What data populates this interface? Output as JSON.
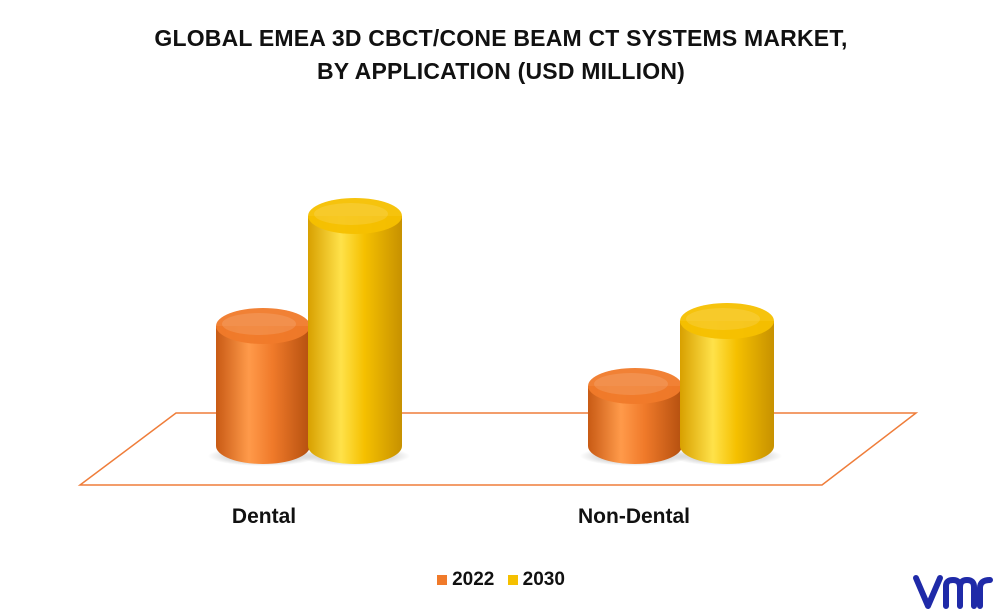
{
  "chart_data": {
    "type": "bar",
    "title_lines": [
      "GLOBAL EMEA 3D CBCT/CONE BEAM CT SYSTEMS MARKET,",
      "BY APPLICATION (USD MILLION)"
    ],
    "categories": [
      "Dental",
      "Non-Dental"
    ],
    "series": [
      {
        "name": "2022",
        "values": [
          120,
          60
        ],
        "color": "#f07a2a"
      },
      {
        "name": "2030",
        "values": [
          230,
          125
        ],
        "color": "#f5c000"
      }
    ],
    "ylim": [
      0,
      250
    ],
    "grid": false,
    "legend_position": "bottom",
    "platform_color": "#ef7d3a"
  },
  "logo": {
    "text": "vmr",
    "color": "#1f2aa8"
  }
}
